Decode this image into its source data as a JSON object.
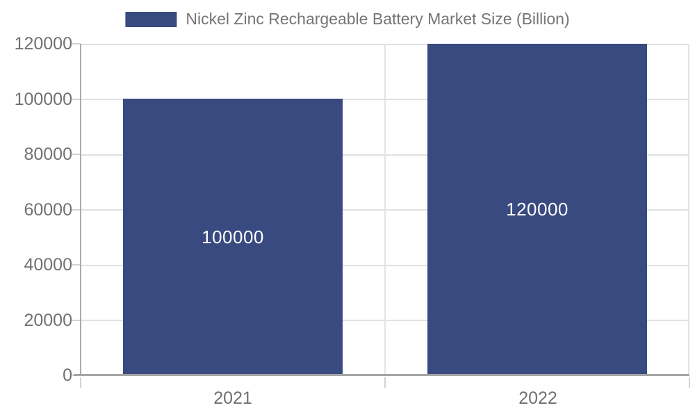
{
  "legend": {
    "label": "Nickel Zinc Rechargeable Battery Market Size (Billion)",
    "swatch_color": "#394A80"
  },
  "chart_data": {
    "type": "bar",
    "title": "Nickel Zinc Rechargeable Battery Market Size (Billion)",
    "categories": [
      "2021",
      "2022"
    ],
    "series": [
      {
        "name": "Nickel Zinc Rechargeable Battery Market Size (Billion)",
        "values": [
          100000,
          120000
        ]
      }
    ],
    "bar_labels": [
      "100000",
      "120000"
    ],
    "y_ticks": [
      "0",
      "20000",
      "40000",
      "60000",
      "80000",
      "100000",
      "120000"
    ],
    "ylim": [
      0,
      120000
    ],
    "xlabel": "",
    "ylabel": "",
    "grid": true,
    "legend_position": "top",
    "bar_color": "#394A80",
    "label_color": "#ffffff",
    "axis_text_color": "#717171",
    "gridline_color": "#e1e1e1",
    "background_color": "#ffffff"
  }
}
